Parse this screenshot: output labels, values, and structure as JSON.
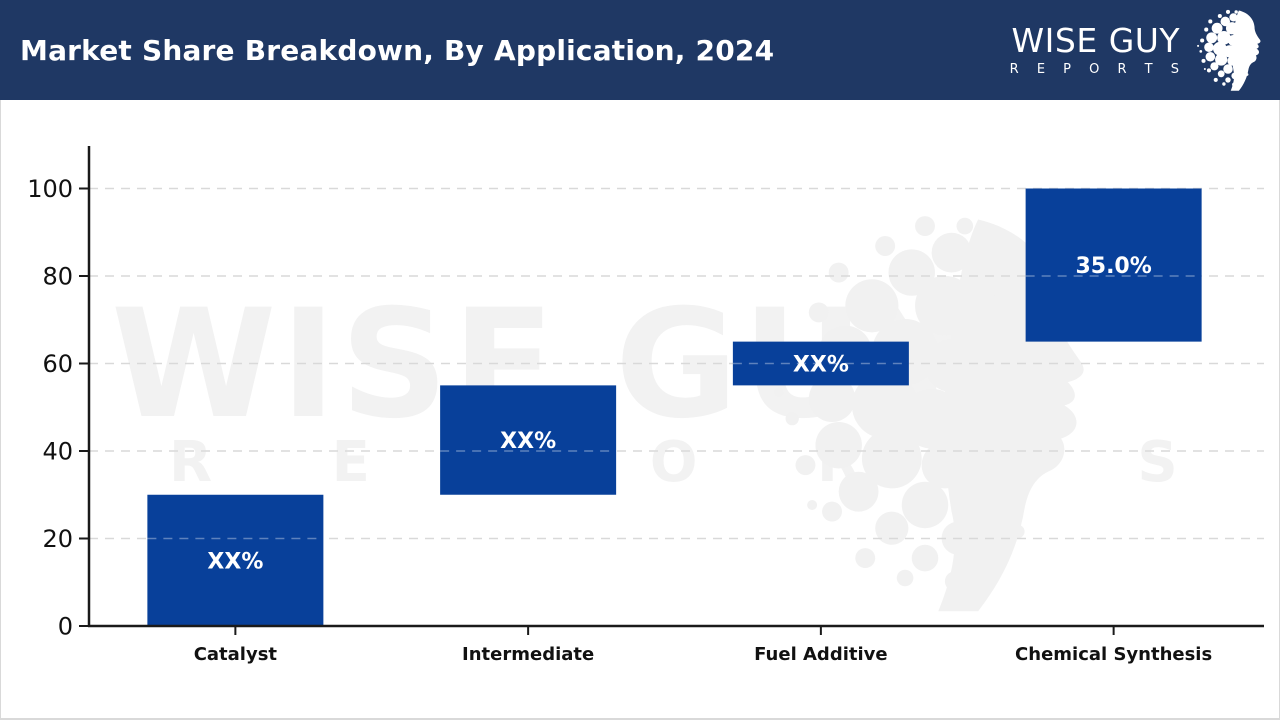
{
  "header": {
    "title": "Market Share Breakdown, By Application, 2024",
    "logo": {
      "line1": "WISE GUY",
      "line2": "REPORTS"
    }
  },
  "watermark": {
    "line1": "WISE GUY",
    "line2": "REPORTS"
  },
  "chart_data": {
    "type": "bar",
    "subtype": "waterfall",
    "title": "Market Share Breakdown, By Application, 2024",
    "xlabel": "",
    "ylabel": "",
    "categories": [
      "Catalyst",
      "Intermediate",
      "Fuel Additive",
      "Chemical Synthesis"
    ],
    "segments": [
      {
        "category": "Catalyst",
        "start": 0,
        "end": 30,
        "label": "XX%"
      },
      {
        "category": "Intermediate",
        "start": 30,
        "end": 55,
        "label": "XX%"
      },
      {
        "category": "Fuel Additive",
        "start": 55,
        "end": 65,
        "label": "XX%"
      },
      {
        "category": "Chemical Synthesis",
        "start": 65,
        "end": 100,
        "label": "35.0%"
      }
    ],
    "yticks": [
      0,
      20,
      40,
      60,
      80,
      100
    ],
    "ylim": [
      0,
      108
    ],
    "grid": "horizontal-dashed",
    "legend": "none",
    "colors": {
      "bar": "#08409a",
      "grid": "#d9d9d9",
      "axis": "#1a1a1a",
      "tick_text": "#111111",
      "bar_label_text": "#ffffff",
      "header_bg": "#1f3864",
      "watermark": "#f2f2f2"
    }
  }
}
